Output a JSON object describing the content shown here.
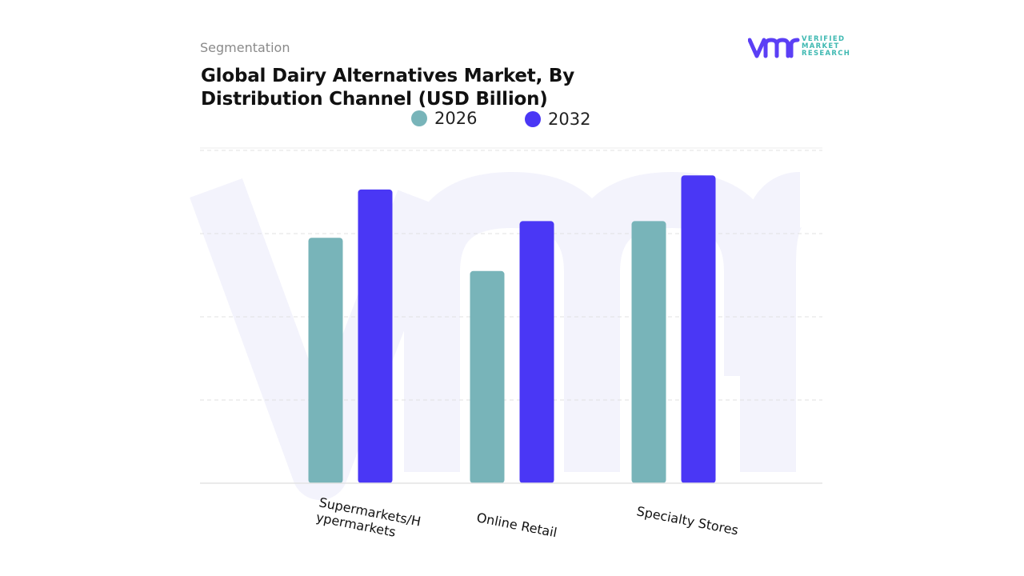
{
  "header": {
    "segment_label": "Segmentation",
    "title": "Global Dairy Alternatives Market, By Distribution Channel (USD Billion)"
  },
  "logo": {
    "mark": "vmr",
    "line1": "VERIFIED",
    "line2": "MARKET",
    "line3": "RESEARCH",
    "mark_color": "#5b3ff5",
    "text_color": "#3fb9b2"
  },
  "legend": [
    {
      "label": "2026",
      "color": "#78b4b9"
    },
    {
      "label": "2032",
      "color": "#4a37f5"
    }
  ],
  "chart_data": {
    "type": "bar",
    "title": "Global Dairy Alternatives Market, By Distribution Channel (USD Billion)",
    "categories": [
      "Supermarkets/Hypermarkets",
      "Online Retail",
      "Specialty Stores"
    ],
    "category_label_lines": [
      [
        "Supermarkets/H",
        "ypermarkets"
      ],
      [
        "Online Retail"
      ],
      [
        "Specialty Stores"
      ]
    ],
    "series": [
      {
        "name": "2026",
        "color": "#78b4b9",
        "values": [
          29.5,
          25.5,
          31.5
        ]
      },
      {
        "name": "2032",
        "color": "#4a37f5",
        "values": [
          35.3,
          31.5,
          37.0
        ]
      }
    ],
    "ylim": [
      0,
      45
    ],
    "y_gridlines": [
      10,
      20,
      30,
      40
    ],
    "y_tick_labels_shown": false,
    "grid": true,
    "legend_position": "top-center",
    "xlabel": "",
    "ylabel": ""
  }
}
